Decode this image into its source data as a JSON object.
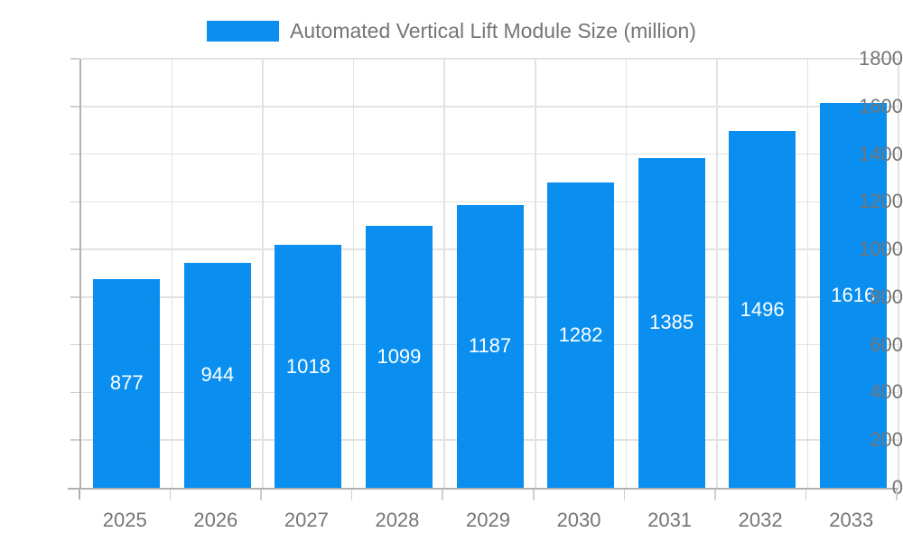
{
  "chart_data": {
    "type": "bar",
    "title": "Automated Vertical Lift Module Size (million)",
    "legend": {
      "label": "Automated Vertical Lift Module Size (million)",
      "position": "top-center"
    },
    "categories": [
      "2025",
      "2026",
      "2027",
      "2028",
      "2029",
      "2030",
      "2031",
      "2032",
      "2033"
    ],
    "values": [
      877,
      944,
      1018,
      1099,
      1187,
      1282,
      1385,
      1496,
      1616
    ],
    "value_labels_position": "inside-center",
    "xlabel": "",
    "ylabel": "",
    "ylim": [
      0,
      1800
    ],
    "yticks": [
      0,
      200,
      400,
      600,
      800,
      1000,
      1200,
      1400,
      1600,
      1800
    ],
    "grid": "horizontal-and-vertical",
    "legend_on": true
  },
  "colors": {
    "bar": "#0a8ff0",
    "value_label": "#ffffff",
    "axis_line": "#b1b1b1",
    "gridline": "#e2e2e2",
    "tick": "#cfcfcf",
    "axis_text": "#757575",
    "background": "#ffffff"
  }
}
